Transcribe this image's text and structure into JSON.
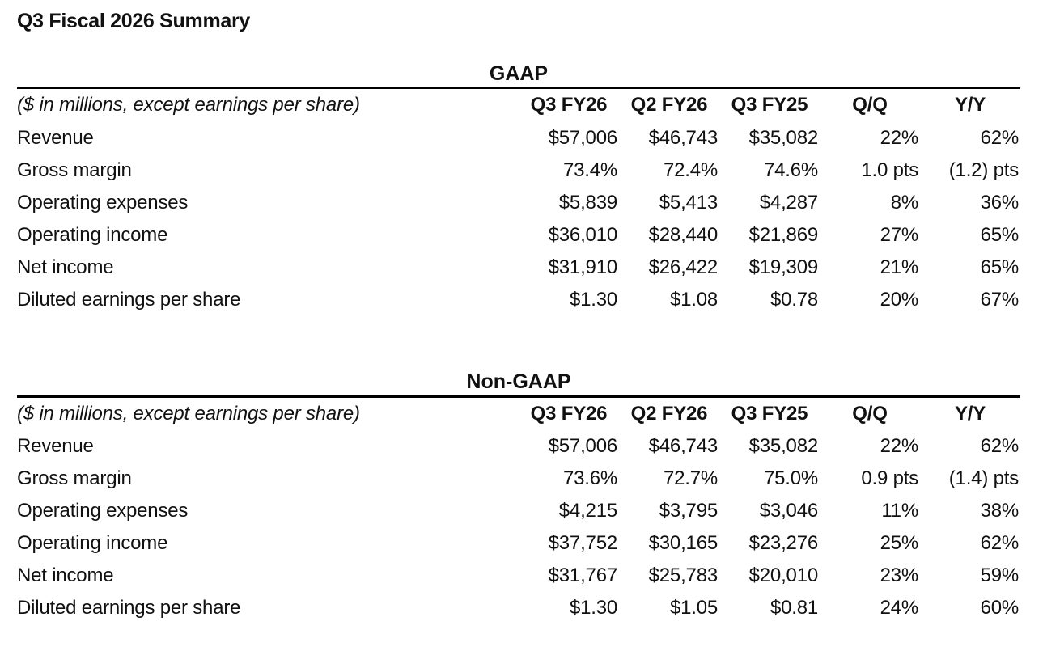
{
  "page": {
    "title": "Q3 Fiscal 2026 Summary"
  },
  "colors": {
    "background": "#ffffff",
    "text": "#111111",
    "rule": "#000000"
  },
  "tables": [
    {
      "heading": "GAAP",
      "caption": "($ in millions, except earnings per share)",
      "columns": [
        "Q3 FY26",
        "Q2 FY26",
        "Q3 FY25",
        "Q/Q",
        "Y/Y"
      ],
      "rows": [
        {
          "label": "Revenue",
          "values": [
            "$57,006",
            "$46,743",
            "$35,082",
            "22%",
            "62%"
          ]
        },
        {
          "label": "Gross margin",
          "values": [
            "73.4%",
            "72.4%",
            "74.6%",
            "1.0 pts",
            "(1.2) pts"
          ]
        },
        {
          "label": "Operating expenses",
          "values": [
            "$5,839",
            "$5,413",
            "$4,287",
            "8%",
            "36%"
          ]
        },
        {
          "label": "Operating income",
          "values": [
            "$36,010",
            "$28,440",
            "$21,869",
            "27%",
            "65%"
          ]
        },
        {
          "label": "Net income",
          "values": [
            "$31,910",
            "$26,422",
            "$19,309",
            "21%",
            "65%"
          ]
        },
        {
          "label": "Diluted earnings per share",
          "values": [
            "$1.30",
            "$1.08",
            "$0.78",
            "20%",
            "67%"
          ]
        }
      ]
    },
    {
      "heading": "Non-GAAP",
      "caption": "($ in millions, except earnings per share)",
      "columns": [
        "Q3 FY26",
        "Q2 FY26",
        "Q3 FY25",
        "Q/Q",
        "Y/Y"
      ],
      "rows": [
        {
          "label": "Revenue",
          "values": [
            "$57,006",
            "$46,743",
            "$35,082",
            "22%",
            "62%"
          ]
        },
        {
          "label": "Gross margin",
          "values": [
            "73.6%",
            "72.7%",
            "75.0%",
            "0.9 pts",
            "(1.4) pts"
          ]
        },
        {
          "label": "Operating expenses",
          "values": [
            "$4,215",
            "$3,795",
            "$3,046",
            "11%",
            "38%"
          ]
        },
        {
          "label": "Operating income",
          "values": [
            "$37,752",
            "$30,165",
            "$23,276",
            "25%",
            "62%"
          ]
        },
        {
          "label": "Net income",
          "values": [
            "$31,767",
            "$25,783",
            "$20,010",
            "23%",
            "59%"
          ]
        },
        {
          "label": "Diluted earnings per share",
          "values": [
            "$1.30",
            "$1.05",
            "$0.81",
            "24%",
            "60%"
          ]
        }
      ]
    }
  ]
}
